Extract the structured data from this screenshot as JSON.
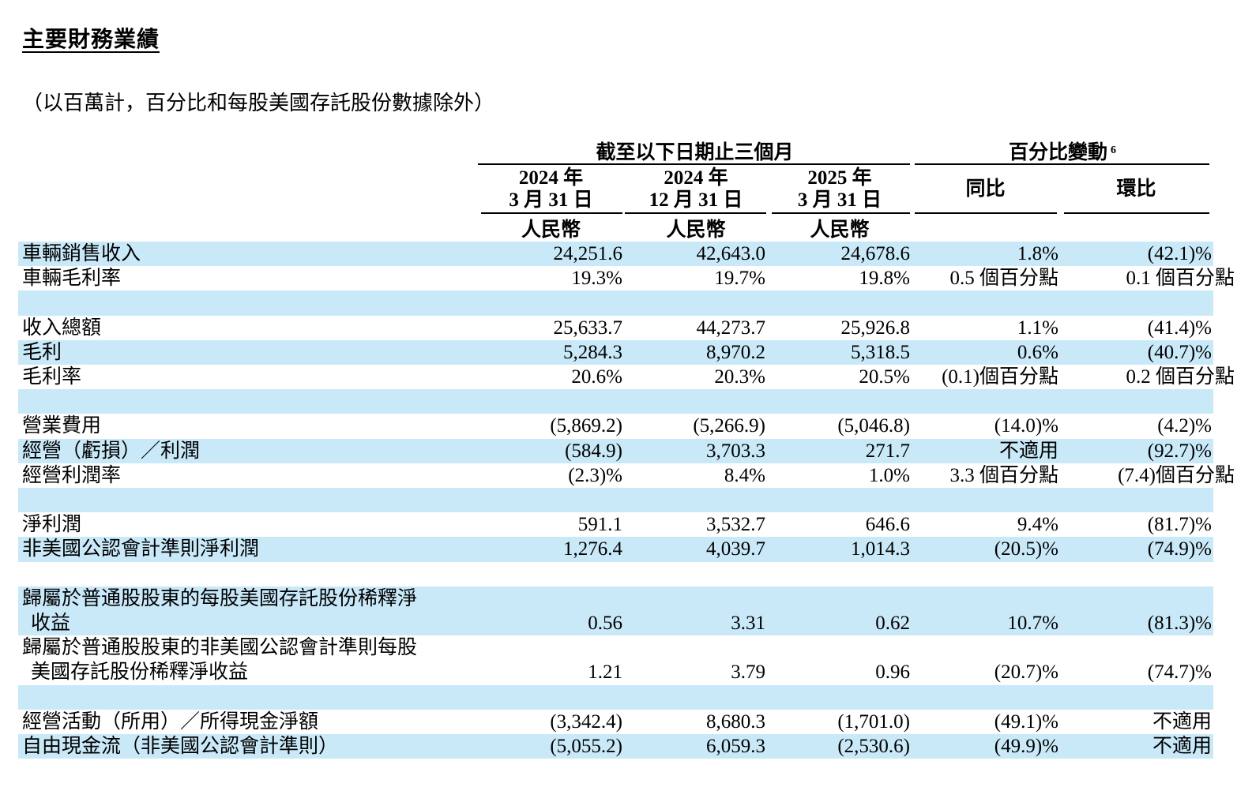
{
  "page": {
    "title": "主要財務業績",
    "units_note": "（以百萬計，百分比和每股美國存託股份數據除外）"
  },
  "colors": {
    "row_highlight": "#c9e9f9",
    "rule": "#000000"
  },
  "table": {
    "group_headers": {
      "period": "截至以下日期止三個月",
      "pct_change": "百分比變動",
      "pct_change_footnote": "6"
    },
    "columns": [
      {
        "line1": "2024 年",
        "line2": "3 月 31 日",
        "currency": "人民幣"
      },
      {
        "line1": "2024 年",
        "line2": "12 月 31 日",
        "currency": "人民幣"
      },
      {
        "line1": "2025 年",
        "line2": "3 月 31 日",
        "currency": "人民幣"
      },
      {
        "label": "同比"
      },
      {
        "label": "環比"
      }
    ],
    "rows": [
      {
        "label": "車輛銷售收入",
        "values": [
          "24,251.6",
          "42,643.0",
          "24,678.6",
          "1.8%",
          "(42.1)%"
        ],
        "shaded": true
      },
      {
        "label": "車輛毛利率",
        "values": [
          "19.3%",
          "19.7%",
          "19.8%",
          "0.5 個百分點",
          "0.1 個百分點"
        ],
        "shaded": false
      },
      {
        "blank": true,
        "shaded": true
      },
      {
        "label": "收入總額",
        "values": [
          "25,633.7",
          "44,273.7",
          "25,926.8",
          "1.1%",
          "(41.4)%"
        ],
        "shaded": false
      },
      {
        "label": "毛利",
        "values": [
          "5,284.3",
          "8,970.2",
          "5,318.5",
          "0.6%",
          "(40.7)%"
        ],
        "shaded": true
      },
      {
        "label": "毛利率",
        "values": [
          "20.6%",
          "20.3%",
          "20.5%",
          "(0.1)個百分點",
          "0.2 個百分點"
        ],
        "shaded": false
      },
      {
        "blank": true,
        "shaded": true
      },
      {
        "label": "營業費用",
        "values": [
          "(5,869.2)",
          "(5,266.9)",
          "(5,046.8)",
          "(14.0)%",
          "(4.2)%"
        ],
        "shaded": false
      },
      {
        "label": "經營（虧損）／利潤",
        "values": [
          "(584.9)",
          "3,703.3",
          "271.7",
          "不適用",
          "(92.7)%"
        ],
        "shaded": true
      },
      {
        "label": "經營利潤率",
        "values": [
          "(2.3)%",
          "8.4%",
          "1.0%",
          "3.3 個百分點",
          "(7.4)個百分點"
        ],
        "shaded": false
      },
      {
        "blank": true,
        "shaded": true
      },
      {
        "label": "淨利潤",
        "values": [
          "591.1",
          "3,532.7",
          "646.6",
          "9.4%",
          "(81.7)%"
        ],
        "shaded": false
      },
      {
        "label": "非美國公認會計準則淨利潤",
        "values": [
          "1,276.4",
          "4,039.7",
          "1,014.3",
          "(20.5)%",
          "(74.9)%"
        ],
        "shaded": true
      },
      {
        "blank": true,
        "shaded": false
      },
      {
        "label_lines": [
          "歸屬於普通股股東的每股美國存託股份稀釋淨",
          "收益"
        ],
        "values": [
          "0.56",
          "3.31",
          "0.62",
          "10.7%",
          "(81.3)%"
        ],
        "shaded": true
      },
      {
        "label_lines": [
          "歸屬於普通股股東的非美國公認會計準則每股",
          "美國存託股份稀釋淨收益"
        ],
        "values": [
          "1.21",
          "3.79",
          "0.96",
          "(20.7)%",
          "(74.7)%"
        ],
        "shaded": false
      },
      {
        "blank": true,
        "shaded": true
      },
      {
        "label": "經營活動（所用）／所得現金淨額",
        "values": [
          "(3,342.4)",
          "8,680.3",
          "(1,701.0)",
          "(49.1)%",
          "不適用"
        ],
        "shaded": false
      },
      {
        "label": "自由現金流（非美國公認會計準則）",
        "values": [
          "(5,055.2)",
          "6,059.3",
          "(2,530.6)",
          "(49.9)%",
          "不適用"
        ],
        "shaded": true
      }
    ]
  }
}
